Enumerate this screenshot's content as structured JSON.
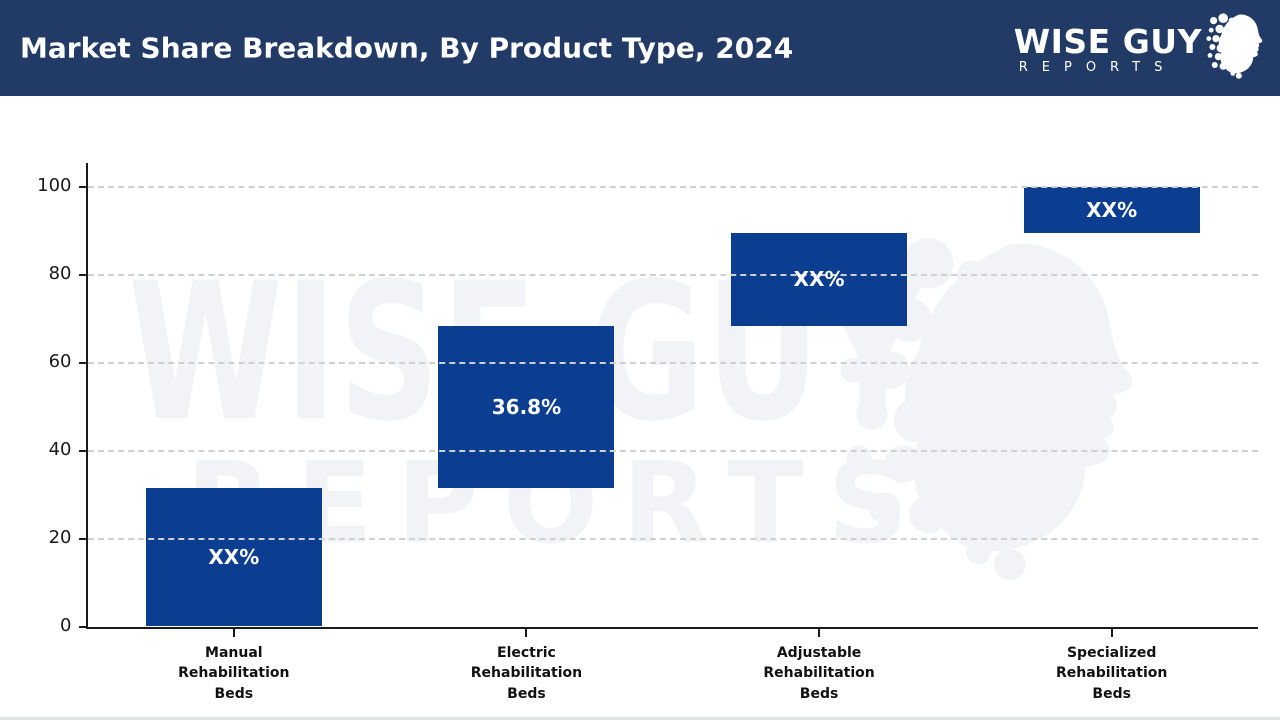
{
  "header": {
    "title": "Market Share Breakdown, By Product Type, 2024",
    "logo": {
      "line1": "WISE GUY",
      "line2": "REPORTS"
    }
  },
  "watermark": {
    "line1": "WISE GUY",
    "line2": "REPORTS"
  },
  "colors": {
    "header_bg": "#213a66",
    "bar": "#0b3d91",
    "bar_label": "#ffffff",
    "axis": "#1a1a1a",
    "grid": "#d0d0d0",
    "tick_label": "#1a1a1a",
    "category_label": "#111111",
    "watermark": "#f2f3f6",
    "bottom_strip": "#dfe3e8"
  },
  "chart_data": {
    "type": "bar",
    "subtype": "waterfall",
    "title": "Market Share Breakdown, By Product Type, 2024",
    "categories": [
      [
        "Manual",
        "Rehabilitation",
        "Beds"
      ],
      [
        "Electric",
        "Rehabilitation",
        "Beds"
      ],
      [
        "Adjustable",
        "Rehabilitation",
        "Beds"
      ],
      [
        "Specialized",
        "Rehabilitation",
        "Beds"
      ]
    ],
    "segments": [
      {
        "category": "Manual Rehabilitation Beds",
        "start": 0,
        "end": 31.5,
        "label": "XX%"
      },
      {
        "category": "Electric Rehabilitation Beds",
        "start": 31.5,
        "end": 68.3,
        "label": "36.8%"
      },
      {
        "category": "Adjustable Rehabilitation Beds",
        "start": 68.3,
        "end": 89.5,
        "label": "XX%"
      },
      {
        "category": "Specialized Rehabilitation Beds",
        "start": 89.5,
        "end": 100,
        "label": "XX%"
      }
    ],
    "yticks": [
      0,
      20,
      40,
      60,
      80,
      100
    ],
    "ylim": [
      0,
      105
    ],
    "xlabel": "",
    "ylabel": "",
    "grid": true,
    "legend": null
  }
}
